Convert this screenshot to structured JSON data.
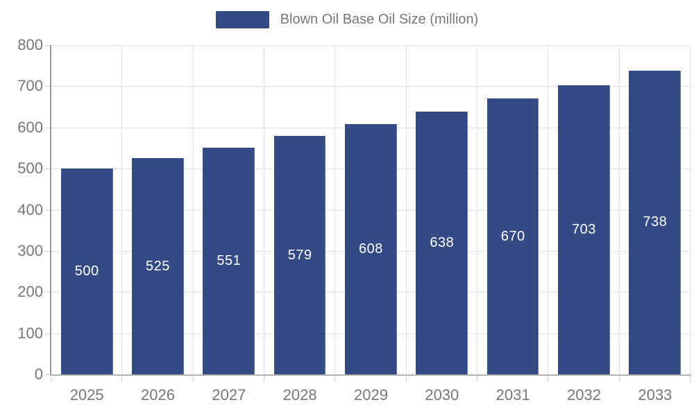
{
  "legend": {
    "label": "Blown Oil Base Oil Size (million)"
  },
  "chart_data": {
    "type": "bar",
    "title": "",
    "xlabel": "",
    "ylabel": "",
    "categories": [
      "2025",
      "2026",
      "2027",
      "2028",
      "2029",
      "2030",
      "2031",
      "2032",
      "2033"
    ],
    "series": [
      {
        "name": "Blown Oil Base Oil Size (million)",
        "values": [
          500,
          525,
          551,
          579,
          608,
          638,
          670,
          703,
          738
        ]
      }
    ],
    "ylim": [
      0,
      800
    ],
    "ytick_interval": 100,
    "grid": true,
    "legend_position": "top-center",
    "bar_value_labels": "inside-middle",
    "colors": {
      "bar": "#344a84",
      "bar_label": "#ffffff",
      "axis_text": "#74777c",
      "axis_line_y": "#999999",
      "axis_line_x": "#b3b3b3",
      "tick": "#cccccc",
      "gridline_h": "#e0e0e0",
      "gridline_v": "#e3e3e3",
      "background": "#ffffff"
    }
  }
}
